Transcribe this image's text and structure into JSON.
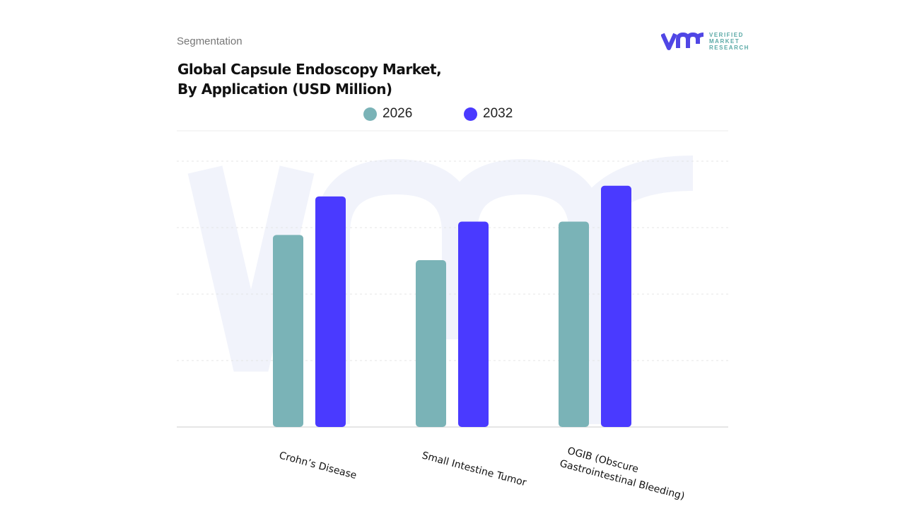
{
  "header": {
    "section": "Segmentation",
    "title_line1": "Global Capsule Endoscopy Market,",
    "title_line2": "By Application (USD Million)"
  },
  "logo": {
    "line1": "VERIFIED",
    "line2": "MARKET",
    "line3": "RESEARCH"
  },
  "chart_data": {
    "type": "bar",
    "title": "Global Capsule Endoscopy Market, By Application (USD Million)",
    "categories": [
      "Crohn’s Disease",
      "Small Intestine Tumor",
      "OGIB (Obscure Gastrointestinal Bleeding)"
    ],
    "category_lines": [
      [
        "Crohn’s Disease"
      ],
      [
        "Small Intestine Tumor"
      ],
      [
        "OGIB (Obscure",
        "Gastrointestinal Bleeding)"
      ]
    ],
    "series": [
      {
        "name": "2026",
        "color": "#7ab3b7",
        "values": [
          2.89,
          2.51,
          3.09
        ]
      },
      {
        "name": "2032",
        "color": "#4a3aff",
        "values": [
          3.47,
          3.09,
          3.63
        ]
      }
    ],
    "ylim": [
      0,
      4
    ],
    "grid": true,
    "legend": "top-center",
    "xlabel": "",
    "ylabel": ""
  }
}
